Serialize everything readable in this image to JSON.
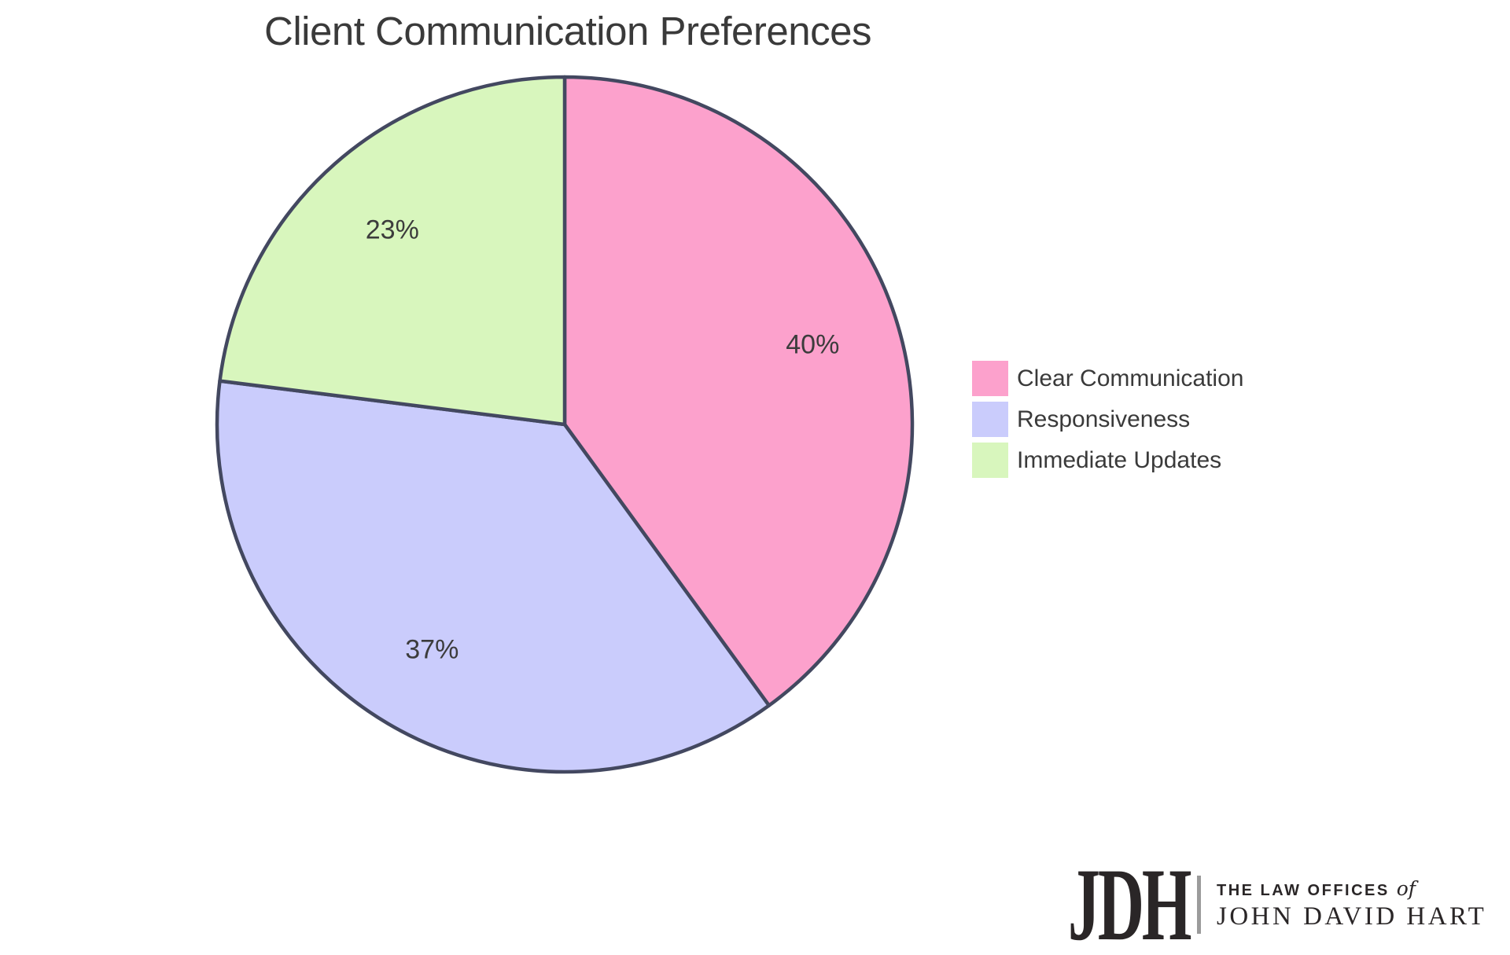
{
  "page": {
    "background": "#ffffff"
  },
  "chart_data": {
    "type": "pie",
    "title": "Client Communication Preferences",
    "categories": [
      "Clear Communication",
      "Responsiveness",
      "Immediate Updates"
    ],
    "values": [
      40,
      37,
      23
    ],
    "value_labels": [
      "40%",
      "37%",
      "23%"
    ],
    "unit": "percent",
    "colors": [
      "#FCA1CC",
      "#CACCFC",
      "#D8F6BD"
    ],
    "slice_stroke_color": "#434860",
    "start_angle": "12-oclock",
    "direction": "clockwise",
    "legend_position": "right",
    "title_color": "#3A3A3A",
    "pct_label_color": "#3C3C3C"
  },
  "branding": {
    "monogram": "JDH",
    "tagline_prefix": "THE LAW OFFICES",
    "tagline_of": "of",
    "firm_name": "JOHN DAVID HART"
  }
}
